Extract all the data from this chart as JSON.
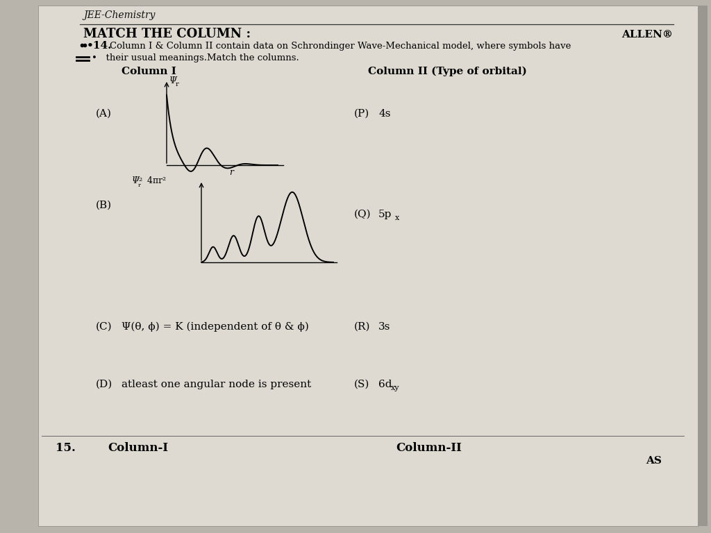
{
  "bg_color": "#b8b4ac",
  "page_color": "#dedad2",
  "title": "JEE-Chemistry",
  "header": "MATCH THE COLUMN :",
  "allen": "ALLEN®",
  "q_num": "•14.",
  "q_line1": "Column I & Column II contain data on Schrondinger Wave-Mechanical model, where symbols have",
  "q_line2": "•   their usual meanings.Match the columns.",
  "col1": "Column I",
  "col2": "Column II (Type of orbital)",
  "A": "(A)",
  "B": "(B)",
  "C": "(C)",
  "D": "(D)",
  "C_text": "Ψ(θ, ϕ) = K (independent of θ & ϕ)",
  "D_text": "atleast one angular node is present",
  "P": "(P)",
  "P_text": "4s",
  "Q": "(Q)",
  "Q_text": "5p",
  "Q_sub": "x",
  "R": "(R)",
  "R_text": "3s",
  "S": "(S)",
  "S_text": "6d",
  "S_sub": "xy",
  "psi_A": "Ψ",
  "psi_A_sub": "r",
  "psi_B": "Ψ",
  "psi_B_sup": "2",
  "psi_B_sub": "r",
  "psi_B_rest": " 4πr²",
  "r_lbl": "r",
  "footer_num": "15.",
  "footer_c1": "Column-I",
  "footer_c2": "Column-II",
  "footer_as": "AS"
}
